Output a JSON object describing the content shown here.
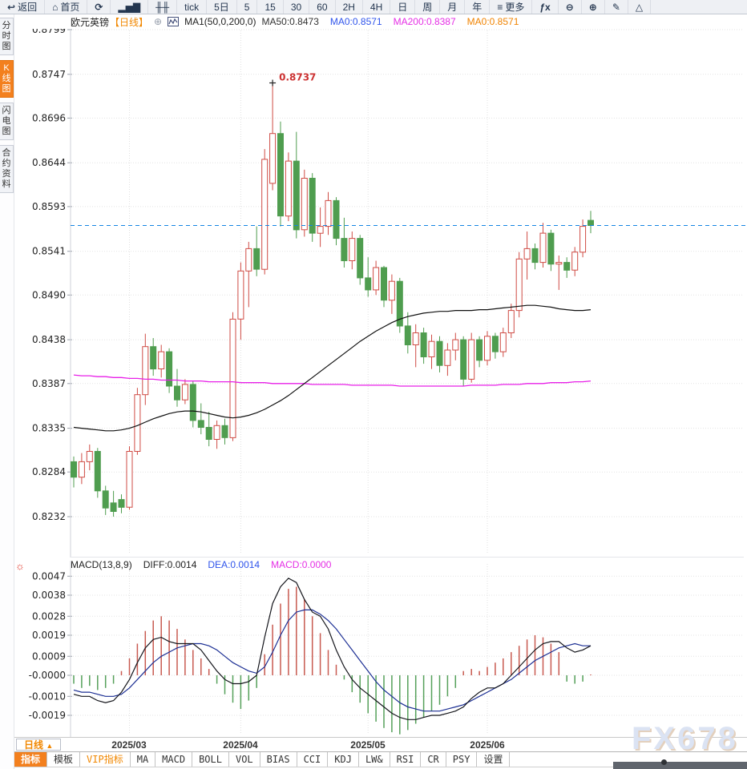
{
  "toolbar": {
    "items": [
      {
        "icon": "back-icon",
        "label": "返回"
      },
      {
        "icon": "home-icon",
        "label": "首页"
      },
      {
        "icon": "refresh-icon",
        "label": ""
      },
      {
        "icon": "bar-chart-icon",
        "label": ""
      },
      {
        "icon": "candles-icon",
        "label": ""
      },
      {
        "icon": "",
        "label": "tick"
      },
      {
        "icon": "",
        "label": "5日"
      },
      {
        "icon": "",
        "label": "5"
      },
      {
        "icon": "",
        "label": "15"
      },
      {
        "icon": "",
        "label": "30"
      },
      {
        "icon": "",
        "label": "60"
      },
      {
        "icon": "",
        "label": "2H"
      },
      {
        "icon": "",
        "label": "4H"
      },
      {
        "icon": "",
        "label": "日"
      },
      {
        "icon": "",
        "label": "周"
      },
      {
        "icon": "",
        "label": "月"
      },
      {
        "icon": "",
        "label": "年"
      },
      {
        "icon": "menu-icon",
        "label": "更多"
      },
      {
        "icon": "fx-icon",
        "label": ""
      },
      {
        "icon": "zoom-out-icon",
        "label": ""
      },
      {
        "icon": "zoom-in-icon",
        "label": ""
      },
      {
        "icon": "pencil-icon",
        "label": ""
      },
      {
        "icon": "shape-icon",
        "label": ""
      }
    ],
    "icon_glyphs": {
      "back-icon": "↩",
      "home-icon": "⌂",
      "refresh-icon": "⟳",
      "bar-chart-icon": "▂▅▇",
      "candles-icon": "╫╫",
      "menu-icon": "≡",
      "fx-icon": "ƒx",
      "zoom-out-icon": "⊖",
      "zoom-in-icon": "⊕",
      "pencil-icon": "✎",
      "shape-icon": "△"
    }
  },
  "sidebar": {
    "items": [
      {
        "label": "分时图",
        "active": false
      },
      {
        "label": "K线图",
        "active": true
      },
      {
        "label": "闪电图",
        "active": false
      },
      {
        "label": "合约资料",
        "active": false
      }
    ]
  },
  "chart_header": {
    "symbol": "欧元英镑",
    "period_tag": "【日线】",
    "expand_icon": "⊕",
    "ma_settings": "MA1(50,0,200,0)",
    "ma_values": [
      {
        "label": "MA50:0.8473",
        "color": "#333333"
      },
      {
        "label": "MA0:0.8571",
        "color": "#2f54eb"
      },
      {
        "label": "MA200:0.8387",
        "color": "#e52ee5"
      },
      {
        "label": "MA0:0.8571",
        "color": "#f08300"
      }
    ]
  },
  "macd_header": {
    "title": "MACD(13,8,9)",
    "sun_icon": "☼",
    "values": [
      {
        "label": "DIFF:0.0014",
        "color": "#222222"
      },
      {
        "label": "DEA:0.0014",
        "color": "#2f54eb"
      },
      {
        "label": "MACD:0.0000",
        "color": "#e52ee5"
      }
    ]
  },
  "bottom": {
    "period_button": "日线",
    "period_arrow": "▲",
    "tabs": [
      {
        "label": "指标",
        "active": true,
        "vip": false
      },
      {
        "label": "模板",
        "active": false,
        "vip": false
      },
      {
        "label": "VIP指标",
        "active": false,
        "vip": true
      },
      {
        "label": "MA",
        "active": false,
        "vip": false
      },
      {
        "label": "MACD",
        "active": false,
        "vip": false
      },
      {
        "label": "BOLL",
        "active": false,
        "vip": false
      },
      {
        "label": "VOL",
        "active": false,
        "vip": false
      },
      {
        "label": "BIAS",
        "active": false,
        "vip": false
      },
      {
        "label": "CCI",
        "active": false,
        "vip": false
      },
      {
        "label": "KDJ",
        "active": false,
        "vip": false
      },
      {
        "label": "LW&",
        "active": false,
        "vip": false
      },
      {
        "label": "RSI",
        "active": false,
        "vip": false
      },
      {
        "label": "CR",
        "active": false,
        "vip": false
      },
      {
        "label": "PSY",
        "active": false,
        "vip": false
      },
      {
        "label": "设置",
        "active": false,
        "vip": false
      }
    ]
  },
  "watermark": "FX678",
  "chart_data": [
    {
      "type": "candlestick",
      "title": "欧元英镑 日线 (EUR/GBP daily)",
      "ylim": [
        0.8232,
        0.8799
      ],
      "y_ticks": [
        "0.8799",
        "0.8747",
        "0.8696",
        "0.8644",
        "0.8593",
        "0.8541",
        "0.8490",
        "0.8438",
        "0.8387",
        "0.8335",
        "0.8284",
        "0.8232"
      ],
      "x_months": [
        {
          "label": "2025/03",
          "index": 7
        },
        {
          "label": "2025/04",
          "index": 21
        },
        {
          "label": "2025/05",
          "index": 37
        },
        {
          "label": "2025/06",
          "index": 52
        }
      ],
      "price_line": 0.8571,
      "annotation": {
        "text": "0.8737",
        "price": 0.8737,
        "index": 25
      },
      "legend": [
        "MA50 (black)",
        "MA200 (magenta)"
      ],
      "colors": {
        "up": "#cf4b44",
        "down": "#4f9d4f",
        "ma50": "#101010",
        "ma200": "#e821e8",
        "price_line": "#1385e3",
        "grid": "#e3e3e3"
      },
      "candles": [
        [
          0.8296,
          0.8302,
          0.8266,
          0.8278
        ],
        [
          0.8278,
          0.8306,
          0.827,
          0.8296
        ],
        [
          0.8296,
          0.8316,
          0.8286,
          0.8308
        ],
        [
          0.8308,
          0.8312,
          0.8254,
          0.8262
        ],
        [
          0.8262,
          0.8268,
          0.8234,
          0.8242
        ],
        [
          0.8248,
          0.8262,
          0.8232,
          0.8238
        ],
        [
          0.8252,
          0.8258,
          0.8236,
          0.8243
        ],
        [
          0.8243,
          0.8314,
          0.824,
          0.8308
        ],
        [
          0.8308,
          0.8382,
          0.8304,
          0.8374
        ],
        [
          0.8374,
          0.8445,
          0.8362,
          0.843
        ],
        [
          0.843,
          0.844,
          0.8396,
          0.8404
        ],
        [
          0.8404,
          0.8432,
          0.8394,
          0.8424
        ],
        [
          0.8424,
          0.8428,
          0.8376,
          0.8384
        ],
        [
          0.8384,
          0.8404,
          0.836,
          0.8368
        ],
        [
          0.8368,
          0.8392,
          0.8363,
          0.8386
        ],
        [
          0.8386,
          0.839,
          0.8336,
          0.8344
        ],
        [
          0.8344,
          0.8364,
          0.8328,
          0.8336
        ],
        [
          0.8336,
          0.8354,
          0.8314,
          0.8322
        ],
        [
          0.8322,
          0.8344,
          0.8311,
          0.8338
        ],
        [
          0.8338,
          0.8346,
          0.8316,
          0.8324
        ],
        [
          0.8324,
          0.847,
          0.832,
          0.8462
        ],
        [
          0.8462,
          0.8528,
          0.8438,
          0.8518
        ],
        [
          0.8518,
          0.8552,
          0.8476,
          0.8544
        ],
        [
          0.8544,
          0.857,
          0.8512,
          0.852
        ],
        [
          0.852,
          0.866,
          0.8514,
          0.8648
        ],
        [
          0.862,
          0.8737,
          0.8612,
          0.8678
        ],
        [
          0.8678,
          0.8692,
          0.857,
          0.8582
        ],
        [
          0.8582,
          0.8656,
          0.8576,
          0.8646
        ],
        [
          0.8646,
          0.868,
          0.8556,
          0.8566
        ],
        [
          0.8566,
          0.8636,
          0.8558,
          0.8626
        ],
        [
          0.8626,
          0.8632,
          0.8552,
          0.8562
        ],
        [
          0.8562,
          0.8592,
          0.8546,
          0.857
        ],
        [
          0.857,
          0.861,
          0.856,
          0.86
        ],
        [
          0.86,
          0.8604,
          0.8548,
          0.8556
        ],
        [
          0.8556,
          0.858,
          0.8522,
          0.853
        ],
        [
          0.853,
          0.8564,
          0.852,
          0.8556
        ],
        [
          0.8556,
          0.856,
          0.8502,
          0.851
        ],
        [
          0.851,
          0.8534,
          0.8488,
          0.8496
        ],
        [
          0.8496,
          0.853,
          0.849,
          0.8522
        ],
        [
          0.8522,
          0.8524,
          0.8476,
          0.8484
        ],
        [
          0.8484,
          0.8514,
          0.8468,
          0.8506
        ],
        [
          0.8506,
          0.851,
          0.8446,
          0.8454
        ],
        [
          0.8454,
          0.847,
          0.8422,
          0.8432
        ],
        [
          0.8432,
          0.8456,
          0.8406,
          0.8446
        ],
        [
          0.8446,
          0.8452,
          0.841,
          0.8418
        ],
        [
          0.8418,
          0.8444,
          0.8404,
          0.8436
        ],
        [
          0.8436,
          0.8442,
          0.84,
          0.8408
        ],
        [
          0.8408,
          0.8434,
          0.8396,
          0.8426
        ],
        [
          0.8426,
          0.8446,
          0.8414,
          0.8438
        ],
        [
          0.8438,
          0.8442,
          0.8384,
          0.8392
        ],
        [
          0.8392,
          0.8446,
          0.8388,
          0.8438
        ],
        [
          0.8438,
          0.8442,
          0.8406,
          0.8414
        ],
        [
          0.8414,
          0.8448,
          0.8408,
          0.8442
        ],
        [
          0.8442,
          0.8446,
          0.8416,
          0.8424
        ],
        [
          0.8424,
          0.8452,
          0.8418,
          0.8446
        ],
        [
          0.8446,
          0.848,
          0.844,
          0.8472
        ],
        [
          0.8472,
          0.854,
          0.8464,
          0.8532
        ],
        [
          0.8532,
          0.8564,
          0.8508,
          0.8544
        ],
        [
          0.8544,
          0.855,
          0.852,
          0.8528
        ],
        [
          0.8528,
          0.8574,
          0.8522,
          0.8562
        ],
        [
          0.8562,
          0.8566,
          0.8518,
          0.8526
        ],
        [
          0.8526,
          0.8536,
          0.8496,
          0.8528
        ],
        [
          0.8528,
          0.8534,
          0.851,
          0.8519
        ],
        [
          0.8519,
          0.8546,
          0.8512,
          0.854
        ],
        [
          0.854,
          0.8578,
          0.8534,
          0.857
        ],
        [
          0.8577,
          0.8588,
          0.8562,
          0.8571
        ]
      ],
      "ma50": [
        0.8336,
        0.8335,
        0.8334,
        0.8333,
        0.8332,
        0.8332,
        0.8333,
        0.8335,
        0.8338,
        0.8342,
        0.8346,
        0.8349,
        0.8352,
        0.8354,
        0.8355,
        0.8355,
        0.8354,
        0.8352,
        0.835,
        0.8348,
        0.8347,
        0.8348,
        0.835,
        0.8353,
        0.8357,
        0.8362,
        0.8367,
        0.8373,
        0.838,
        0.8387,
        0.8394,
        0.8401,
        0.8408,
        0.8415,
        0.8422,
        0.8429,
        0.8436,
        0.8442,
        0.8448,
        0.8453,
        0.8458,
        0.8462,
        0.8465,
        0.8467,
        0.8469,
        0.847,
        0.8471,
        0.8471,
        0.8472,
        0.8472,
        0.8472,
        0.8473,
        0.8473,
        0.8474,
        0.8475,
        0.8476,
        0.8477,
        0.8478,
        0.8478,
        0.8477,
        0.8476,
        0.8474,
        0.8473,
        0.8472,
        0.8472,
        0.8473
      ],
      "ma200": [
        0.8397,
        0.8396,
        0.8396,
        0.8395,
        0.8395,
        0.8394,
        0.8394,
        0.8393,
        0.8393,
        0.8392,
        0.8392,
        0.8391,
        0.8391,
        0.8391,
        0.839,
        0.839,
        0.839,
        0.8389,
        0.8389,
        0.8389,
        0.8389,
        0.8388,
        0.8388,
        0.8388,
        0.8388,
        0.8387,
        0.8387,
        0.8387,
        0.8387,
        0.8387,
        0.8386,
        0.8386,
        0.8386,
        0.8386,
        0.8386,
        0.8385,
        0.8385,
        0.8385,
        0.8385,
        0.8385,
        0.8385,
        0.8384,
        0.8384,
        0.8384,
        0.8384,
        0.8384,
        0.8384,
        0.8384,
        0.8384,
        0.8384,
        0.8385,
        0.8385,
        0.8385,
        0.8385,
        0.8386,
        0.8386,
        0.8386,
        0.8387,
        0.8387,
        0.8387,
        0.8388,
        0.8388,
        0.8388,
        0.8389,
        0.8389,
        0.839
      ]
    },
    {
      "type": "macd",
      "title": "MACD(13,8,9)",
      "y_ticks": [
        "0.0047",
        "0.0038",
        "0.0028",
        "0.0019",
        "0.0009",
        "-0.0000",
        "-0.0010",
        "-0.0019"
      ],
      "colors": {
        "hist_up": "#c85a50",
        "hist_down": "#55a05a",
        "diff": "#15161c",
        "dea": "#1c2f94"
      },
      "histogram": [
        -0.0004,
        -0.0006,
        -0.0005,
        -0.0007,
        -0.0006,
        -0.0004,
        0.0002,
        0.0008,
        0.0015,
        0.0021,
        0.0026,
        0.0028,
        0.0026,
        0.0022,
        0.0017,
        0.0012,
        0.0008,
        0.0003,
        -0.0004,
        -0.0009,
        -0.0013,
        -0.0016,
        -0.0012,
        -0.0006,
        0.001,
        0.0024,
        0.0034,
        0.0041,
        0.0042,
        0.0036,
        0.0028,
        0.002,
        0.0012,
        0.0005,
        -0.0002,
        -0.0008,
        -0.0013,
        -0.0018,
        -0.0022,
        -0.0025,
        -0.0027,
        -0.0028,
        -0.0026,
        -0.0023,
        -0.002,
        -0.0017,
        -0.0014,
        -0.001,
        -0.0006,
        0.0002,
        0.0003,
        0.0002,
        0.0004,
        0.0006,
        0.0008,
        0.0011,
        0.0014,
        0.0017,
        0.0019,
        0.0018,
        0.0015,
        0.0011,
        -0.0003,
        -0.0004,
        -0.0003,
        0.0
      ],
      "diff": [
        -0.0009,
        -0.001,
        -0.001,
        -0.0012,
        -0.0013,
        -0.0012,
        -0.0008,
        -0.0002,
        0.0006,
        0.0013,
        0.0017,
        0.0018,
        0.0016,
        0.0015,
        0.0015,
        0.0015,
        0.0012,
        0.0007,
        0.0002,
        -0.0002,
        -0.0004,
        -0.0004,
        -0.0003,
        0.0,
        0.0018,
        0.0034,
        0.0042,
        0.0046,
        0.0044,
        0.0036,
        0.003,
        0.0028,
        0.0022,
        0.0012,
        0.0004,
        -0.0002,
        -0.0006,
        -0.0009,
        -0.0012,
        -0.0015,
        -0.0018,
        -0.002,
        -0.0021,
        -0.0021,
        -0.002,
        -0.0019,
        -0.0019,
        -0.0018,
        -0.0017,
        -0.0015,
        -0.0011,
        -0.0008,
        -0.0006,
        -0.0006,
        -0.0004,
        0.0,
        0.0004,
        0.0008,
        0.0012,
        0.0015,
        0.0016,
        0.0016,
        0.0013,
        0.0011,
        0.0012,
        0.0014
      ],
      "dea": [
        -0.0007,
        -0.0008,
        -0.0008,
        -0.0009,
        -0.001,
        -0.001,
        -0.0009,
        -0.0006,
        -0.0002,
        0.0002,
        0.0006,
        0.0009,
        0.0011,
        0.0013,
        0.0014,
        0.0015,
        0.0015,
        0.0014,
        0.0012,
        0.0009,
        0.0006,
        0.0004,
        0.0002,
        0.0001,
        0.0004,
        0.0011,
        0.0019,
        0.0026,
        0.003,
        0.0031,
        0.0031,
        0.0029,
        0.0026,
        0.0022,
        0.0017,
        0.0012,
        0.0007,
        0.0002,
        -0.0003,
        -0.0007,
        -0.001,
        -0.0013,
        -0.0015,
        -0.0016,
        -0.0017,
        -0.0017,
        -0.0017,
        -0.0016,
        -0.0015,
        -0.0014,
        -0.0012,
        -0.001,
        -0.0008,
        -0.0006,
        -0.0004,
        -0.0002,
        0.0001,
        0.0004,
        0.0007,
        0.0009,
        0.0011,
        0.0013,
        0.0014,
        0.0015,
        0.0014,
        0.0014
      ]
    }
  ]
}
